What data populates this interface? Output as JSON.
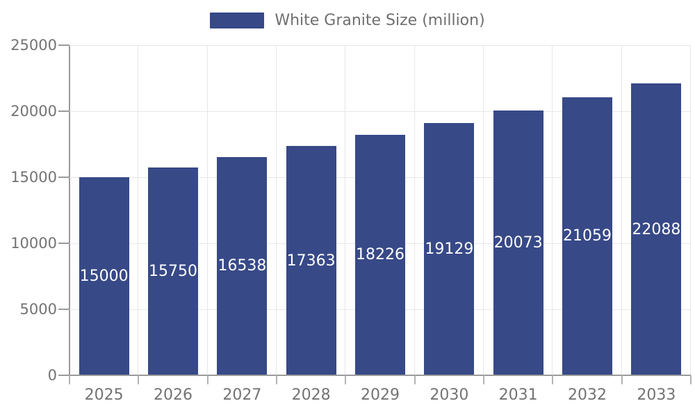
{
  "chart_data": {
    "type": "bar",
    "title": "",
    "legend": {
      "label": "White Granite Size (million)",
      "position": "top"
    },
    "categories": [
      "2025",
      "2026",
      "2027",
      "2028",
      "2029",
      "2030",
      "2031",
      "2032",
      "2033"
    ],
    "series": [
      {
        "name": "White Granite Size (million)",
        "values": [
          15000,
          15750,
          16538,
          17363,
          18226,
          19129,
          20073,
          21059,
          22088
        ]
      }
    ],
    "bar_value_labels": [
      "15000",
      "15750",
      "16538",
      "17363",
      "18226",
      "19129",
      "20073",
      "21059",
      "22088"
    ],
    "xlabel": "",
    "ylabel": "",
    "ylim": [
      0,
      25000
    ],
    "yticks": [
      0,
      5000,
      10000,
      15000,
      20000,
      25000
    ],
    "grid": true,
    "legend_position": "top",
    "colors": {
      "bar": "#374987",
      "bar_label_text": "#ffffff",
      "axis_text": "#737373",
      "legend_text": "#6f6f6f",
      "grid_line": "#e7e7e7",
      "axis_line": "#9a9a9a",
      "tick_mark": "#b3b3b3",
      "background": "#ffffff"
    }
  }
}
